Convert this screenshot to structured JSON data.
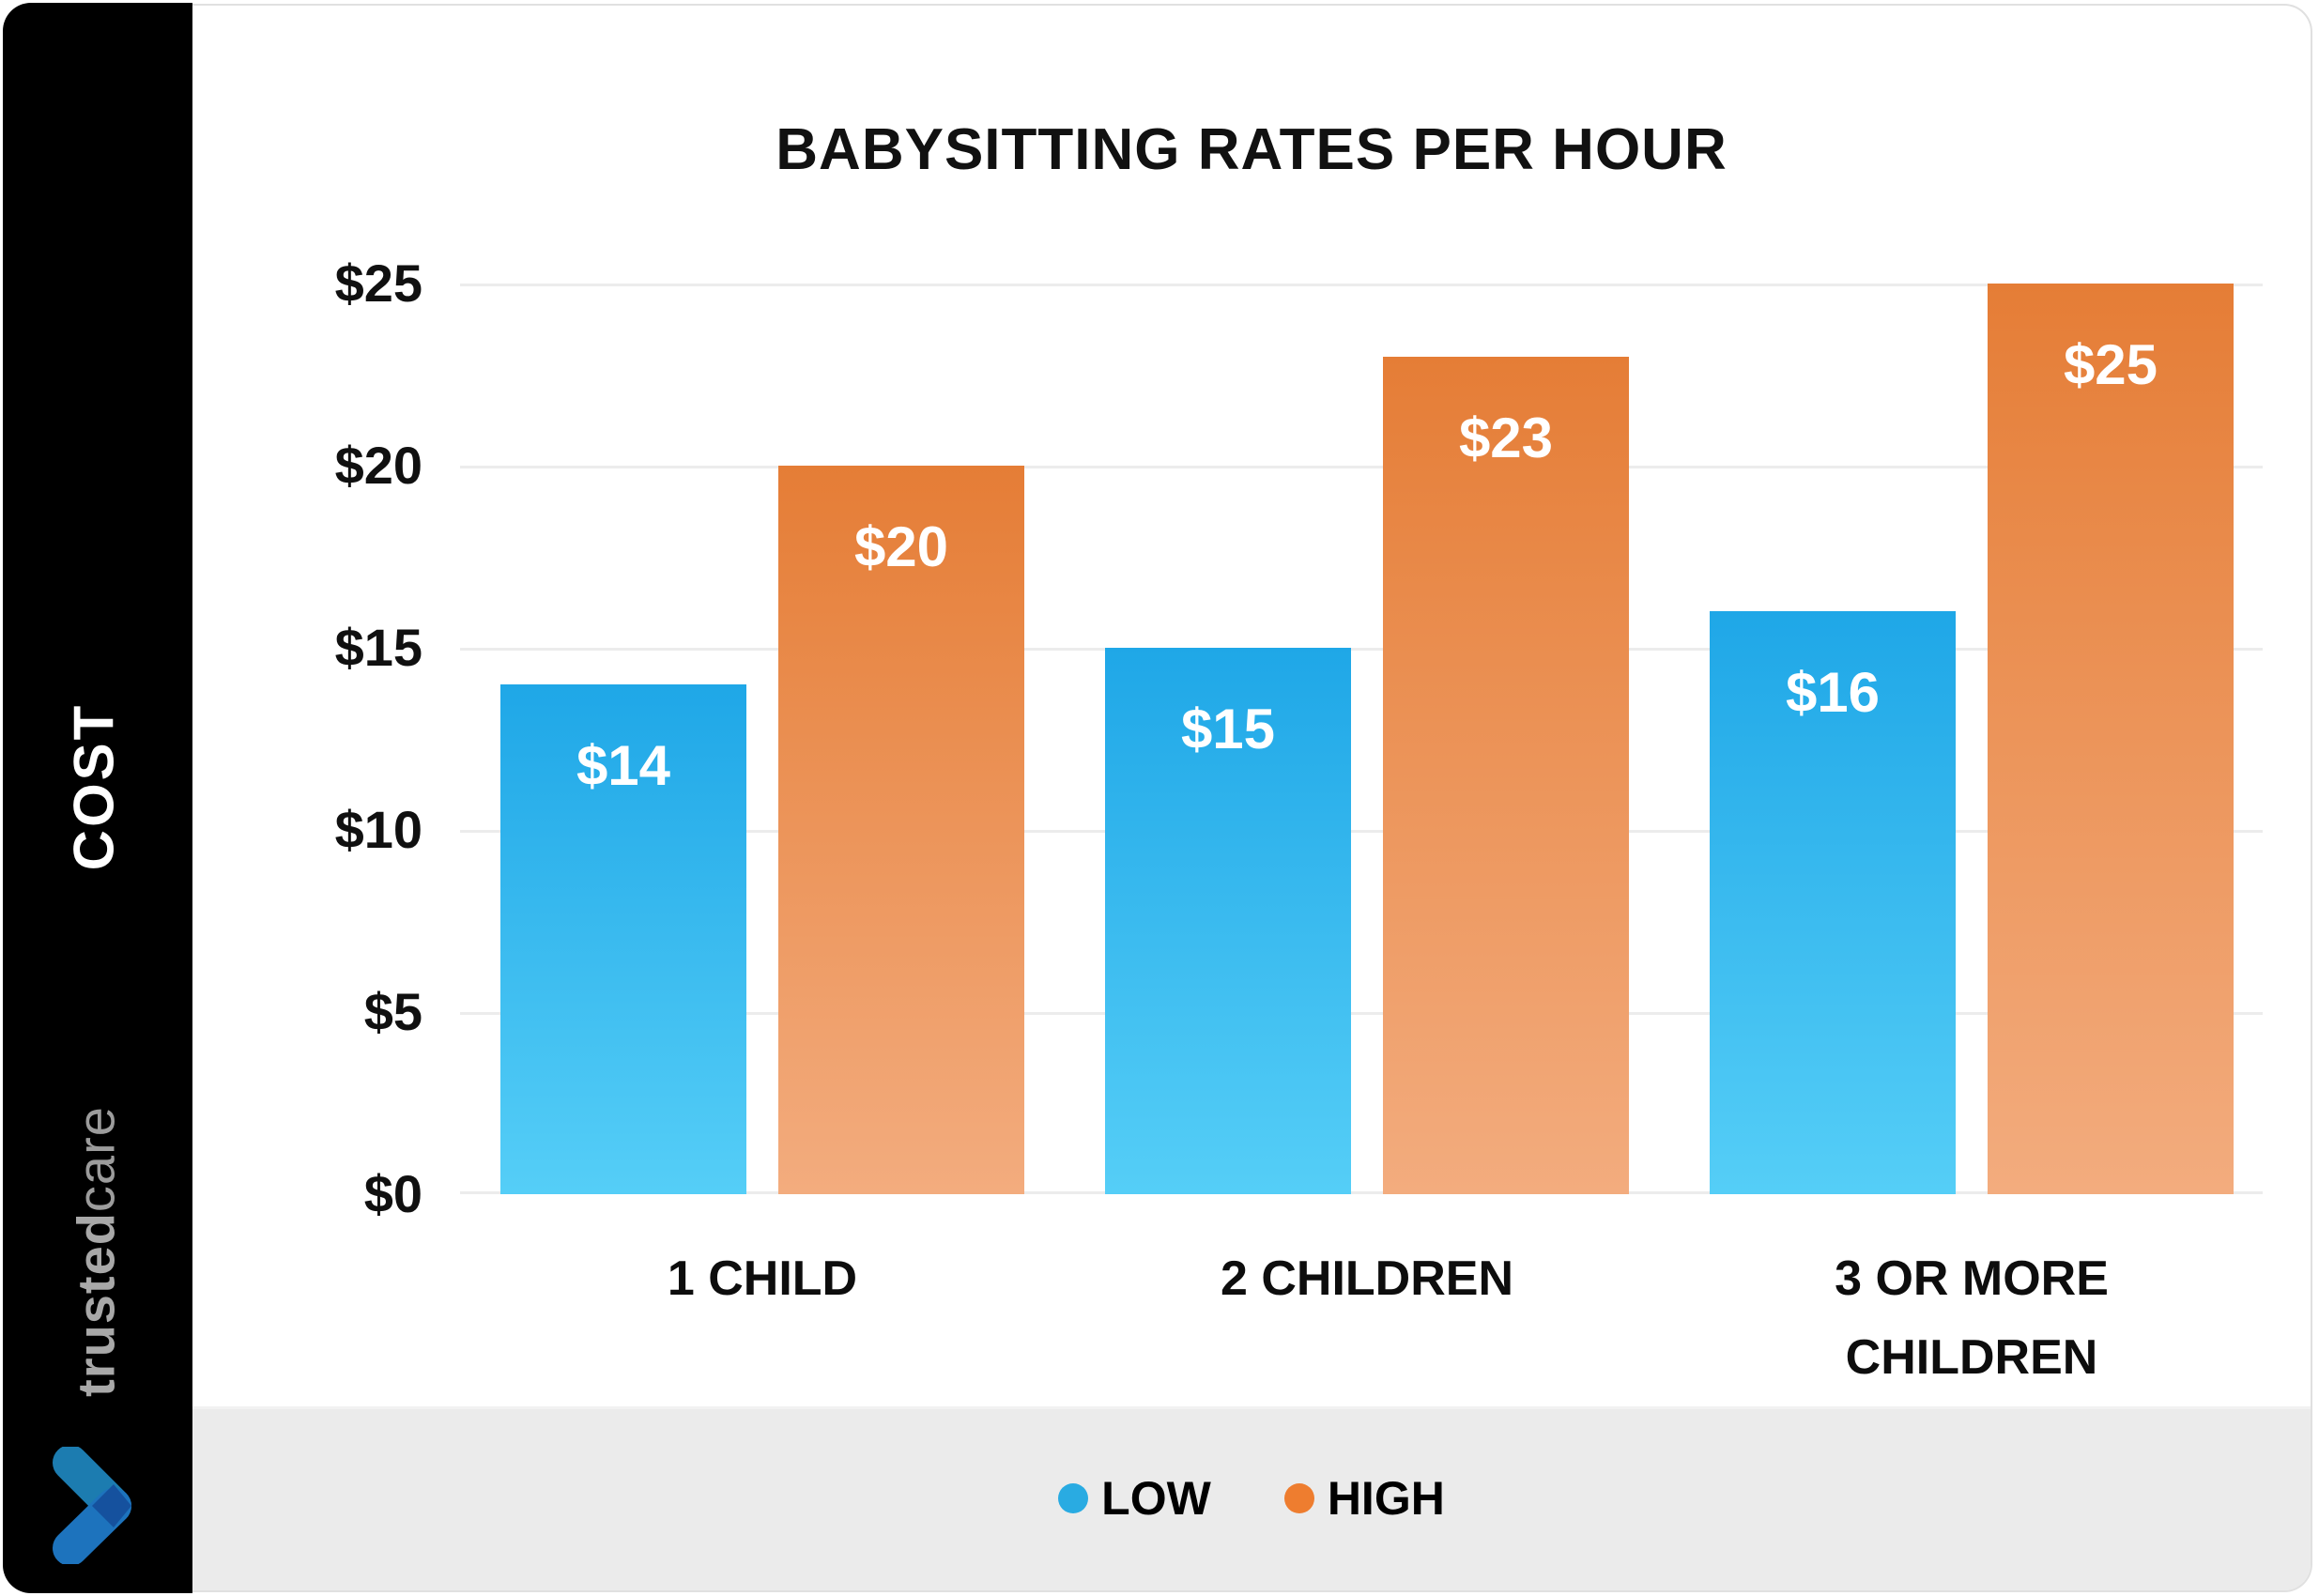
{
  "sidebar": {
    "vertical_label": "COST",
    "brand_bold": "trusted",
    "brand_light": "care"
  },
  "chart_data": {
    "type": "bar",
    "title": "BABYSITTING RATES PER HOUR",
    "categories": [
      "1 CHILD",
      "2 CHILDREN",
      "3 OR MORE CHILDREN"
    ],
    "series": [
      {
        "name": "LOW",
        "values": [
          14,
          15,
          16
        ],
        "data_labels": [
          "$14",
          "$15",
          "$16"
        ]
      },
      {
        "name": "HIGH",
        "values": [
          20,
          23,
          25
        ],
        "data_labels": [
          "$20",
          "$23",
          "$25"
        ]
      }
    ],
    "y_ticks": [
      "$25",
      "$20",
      "$15",
      "$10",
      "$5",
      "$0"
    ],
    "ylim": [
      0,
      25
    ],
    "grid": true,
    "legend_position": "bottom"
  },
  "legend": {
    "items": [
      {
        "label": "LOW",
        "color": "#29ABE2"
      },
      {
        "label": "HIGH",
        "color": "#EE7D2F"
      }
    ]
  },
  "colors": {
    "low_bar_top": "#1FA7E7",
    "low_bar_bottom": "#55CEF7",
    "high_bar_top": "#E57D36",
    "high_bar_bottom": "#F3AC7E",
    "grid_line": "#ECECEC",
    "footer_band": "#EBEBEB",
    "sidebar_bg": "#000000",
    "brand_text": "#A8A8A8",
    "logo_blue_top": "#1C7CB0",
    "logo_blue_bottom": "#1D73BD",
    "logo_overlap": "#15519E"
  }
}
